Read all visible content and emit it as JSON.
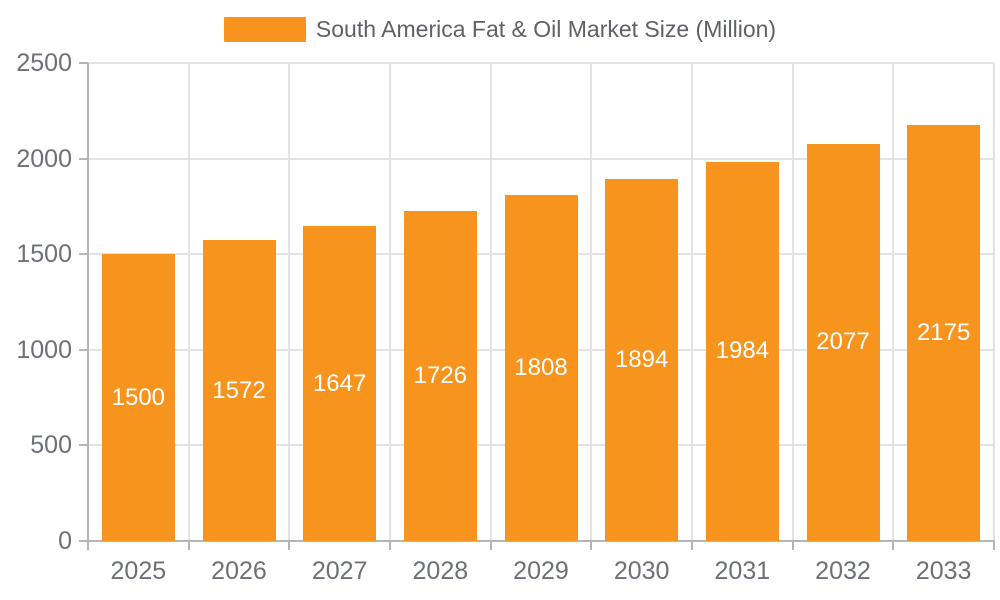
{
  "chart_data": {
    "type": "bar",
    "title": "South America Fat & Oil Market Size (Million)",
    "categories": [
      "2025",
      "2026",
      "2027",
      "2028",
      "2029",
      "2030",
      "2031",
      "2032",
      "2033"
    ],
    "values": [
      1500,
      1572,
      1647,
      1726,
      1808,
      1894,
      1984,
      2077,
      2175
    ],
    "series": [
      {
        "name": "South America Fat & Oil Market Size (Million)",
        "values": [
          1500,
          1572,
          1647,
          1726,
          1808,
          1894,
          1984,
          2077,
          2175
        ]
      }
    ],
    "xlabel": "",
    "ylabel": "",
    "ylim": [
      0,
      2500
    ],
    "yticks": [
      0,
      500,
      1000,
      1500,
      2000,
      2500
    ],
    "grid": true,
    "legend_position": "top-center",
    "value_labels": "inside-center",
    "colors": {
      "bar": "#F7941E",
      "grid_line": "#E3E3E3",
      "axis_line": "#B5B5B5",
      "axis_text": "#6E7079",
      "legend_text": "#5E6165",
      "value_label": "#FFFFFF",
      "background": "#FFFFFF"
    }
  }
}
